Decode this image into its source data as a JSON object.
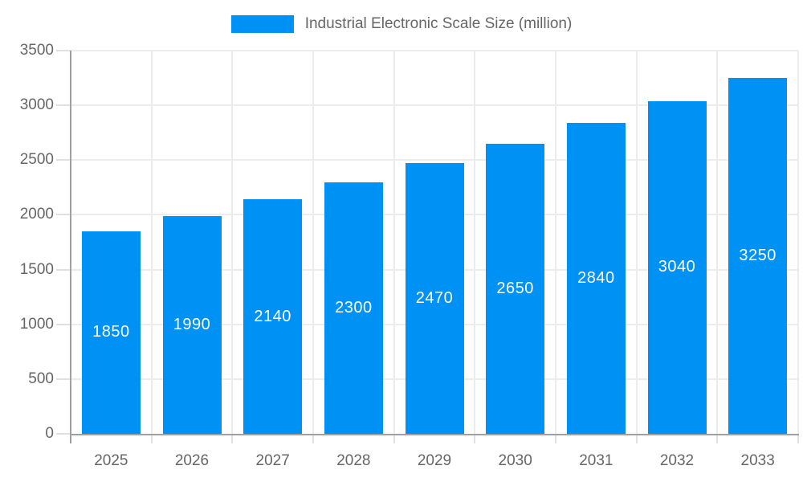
{
  "chart_data": {
    "type": "bar",
    "title": "Industrial Electronic Scale Size (million)",
    "categories": [
      "2025",
      "2026",
      "2027",
      "2028",
      "2029",
      "2030",
      "2031",
      "2032",
      "2033"
    ],
    "values": [
      1850,
      1990,
      2140,
      2300,
      2470,
      2650,
      2840,
      3040,
      3250
    ],
    "value_labels": [
      "1850",
      "1990",
      "2140",
      "2300",
      "2470",
      "2650",
      "2840",
      "3040",
      "3250"
    ],
    "xlabel": "",
    "ylabel": "",
    "ylim": [
      0,
      3500
    ],
    "ytick_step": 500,
    "yticks": [
      0,
      500,
      1000,
      1500,
      2000,
      2500,
      3000,
      3500
    ],
    "ytick_labels": [
      "0",
      "500",
      "1000",
      "1500",
      "2000",
      "2500",
      "3000",
      "3500"
    ],
    "grid": true,
    "legend_position": "top",
    "colors": {
      "bar": "#0091F5",
      "value_label": "#ffffff",
      "axis_text": "#666666",
      "axis_line": "#a0a0a0",
      "gridline": "#ececec",
      "tick": "#e0e0e0",
      "background": "#ffffff"
    }
  },
  "legend": {
    "label": "Industrial Electronic Scale Size (million)"
  }
}
